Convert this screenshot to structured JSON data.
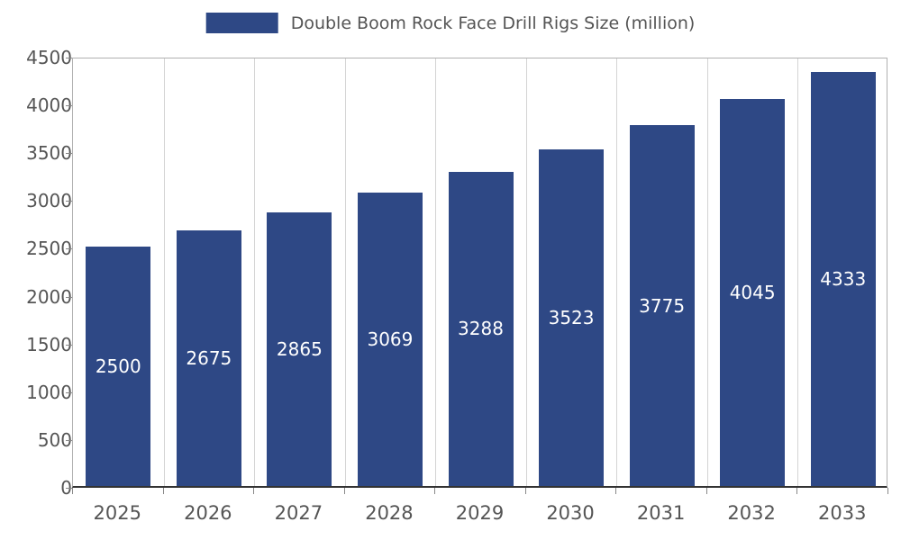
{
  "chart_data": {
    "type": "bar",
    "title": "Double Boom Rock Face Drill Rigs Size (million)",
    "categories": [
      "2025",
      "2026",
      "2027",
      "2028",
      "2029",
      "2030",
      "2031",
      "2032",
      "2033"
    ],
    "values": [
      2500,
      2675,
      2865,
      3069,
      3288,
      3523,
      3775,
      4045,
      4333
    ],
    "xlabel": "",
    "ylabel": "",
    "ylim": [
      0,
      4500
    ],
    "yticks": [
      0,
      500,
      1000,
      1500,
      2000,
      2500,
      3000,
      3500,
      4000,
      4500
    ],
    "legend_position": "top-center",
    "grid": "vertical-only",
    "colors": {
      "bar": "#2e4885",
      "axis_text": "#555555",
      "grid_line": "#d4d4d4",
      "plot_border": "#b0b0b0",
      "axis_line": "#333333",
      "bar_label_text": "#ffffff",
      "background": "#ffffff"
    }
  }
}
